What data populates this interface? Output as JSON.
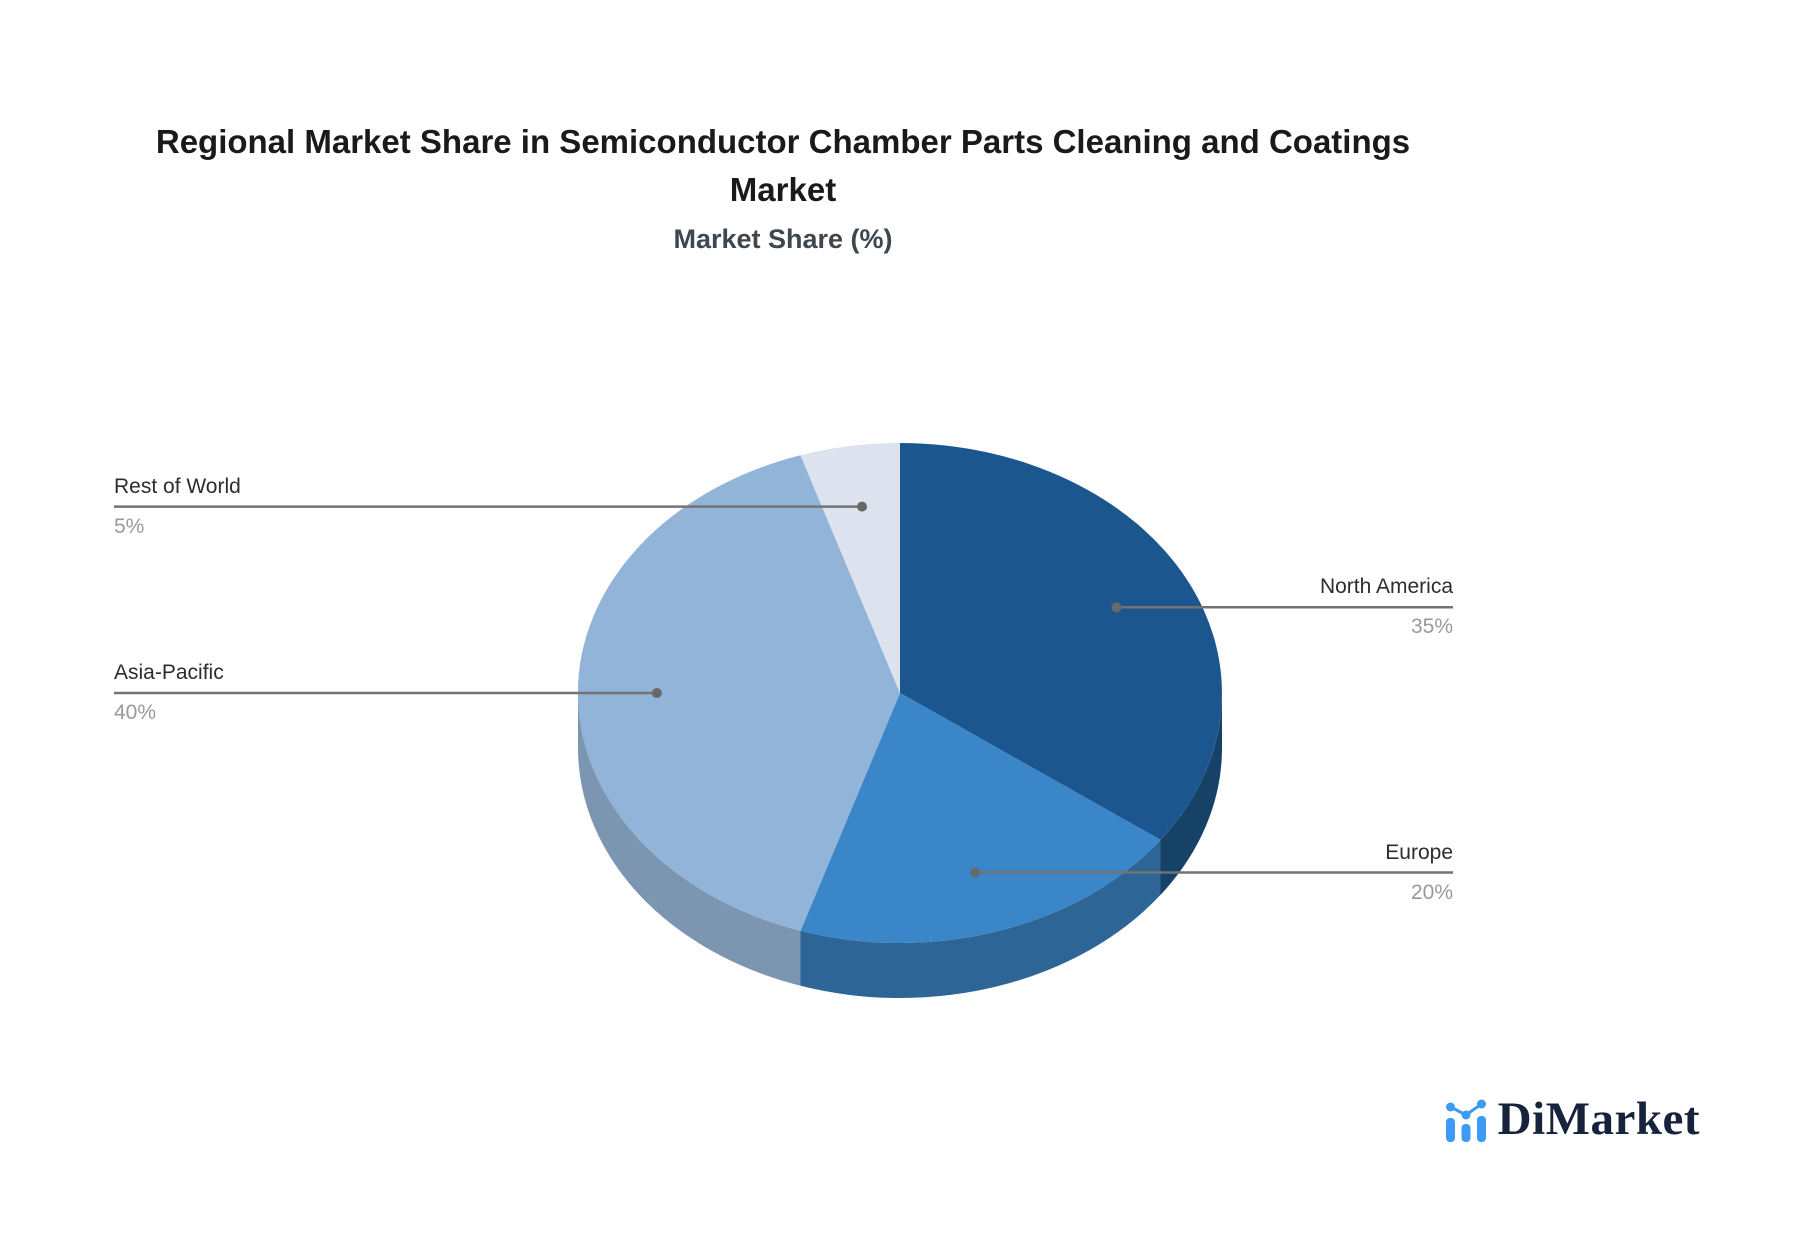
{
  "title_line1": "Regional Market Share in Semiconductor Chamber Parts Cleaning and Coatings",
  "title_line2": "Market",
  "subtitle": "Market Share (%)",
  "chart_data": {
    "type": "pie",
    "title": "Regional Market Share in Semiconductor Chamber Parts Cleaning and Coatings Market",
    "subtitle": "Market Share (%)",
    "labels": [
      "North America",
      "Europe",
      "Asia-Pacific",
      "Rest of World"
    ],
    "values": [
      35,
      20,
      40,
      5
    ],
    "unit": "%",
    "style": "3d-pie",
    "start_angle": "12-o-clock",
    "direction": "clockwise",
    "legend_position": "none",
    "label_style": "callout-leader-lines",
    "colors": [
      "#1B578E",
      "#3A86C8",
      "#92B4D8",
      "#DCE3EF"
    ],
    "side_colors": [
      "#174268",
      "#2D6596",
      "#7C95B0",
      "#B9C5D6"
    ],
    "leader_line_color": "#737373",
    "background_color": "#FFFFFF"
  },
  "callouts": [
    {
      "label": "North America",
      "value": "35%"
    },
    {
      "label": "Europe",
      "value": "20%"
    },
    {
      "label": "Asia-Pacific",
      "value": "40%"
    },
    {
      "label": "Rest of World",
      "value": "5%"
    }
  ],
  "logo": {
    "text": "DiMarket",
    "icon": "bar-line-chart-icon",
    "icon_color": "#3D9BF5",
    "text_color": "#17233C"
  }
}
